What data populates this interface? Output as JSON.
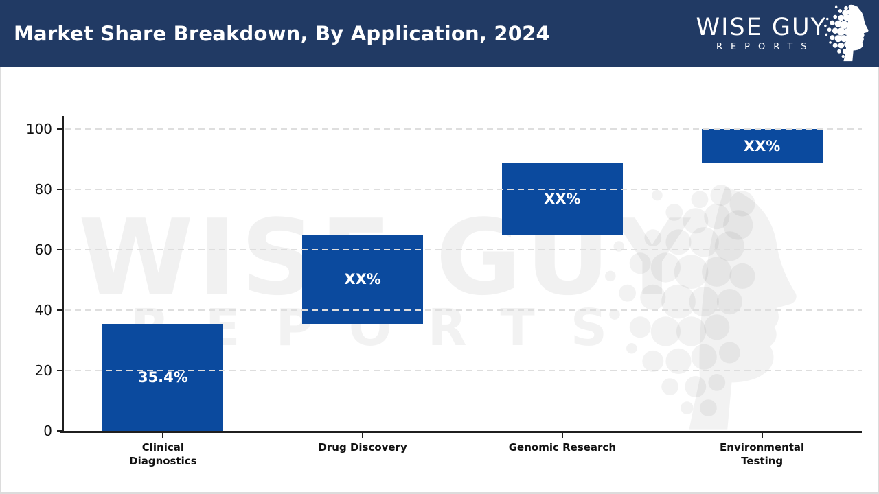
{
  "header": {
    "title": "Market Share Breakdown, By Application, 2024",
    "logo": {
      "wordmark": "WISE GUY",
      "subtext": "REPORTS"
    }
  },
  "watermark": {
    "wordmark": "WISE GUY",
    "subtext": "REPORTS"
  },
  "chart_data": {
    "type": "bar",
    "subtype": "floating-waterfall",
    "title": "Market Share Breakdown, By Application, 2024",
    "categories": [
      "Clinical\nDiagnostics",
      "Drug Discovery",
      "Genomic Research",
      "Environmental\nTesting"
    ],
    "segments": [
      {
        "category": "Clinical Diagnostics",
        "start": 0,
        "end": 35.4,
        "label": "35.4%"
      },
      {
        "category": "Drug Discovery",
        "start": 35.4,
        "end": 65,
        "label": "XX%"
      },
      {
        "category": "Genomic Research",
        "start": 65,
        "end": 88.5,
        "label": "XX%"
      },
      {
        "category": "Environmental Testing",
        "start": 88.5,
        "end": 100,
        "label": "XX%"
      }
    ],
    "yticks": [
      0,
      20,
      40,
      60,
      80,
      100
    ],
    "ylim": [
      0,
      107
    ],
    "grid": "horizontal dashed gridlines drawn over bars",
    "legend": "none",
    "colors": {
      "bar": "#0b4a9e",
      "bar_label": "#ffffff",
      "axis": "#1f1f1f",
      "tick_label": "#111111",
      "gridline": "#dedede",
      "header_bg": "#213a64",
      "watermark": "#f0f0f0"
    }
  }
}
